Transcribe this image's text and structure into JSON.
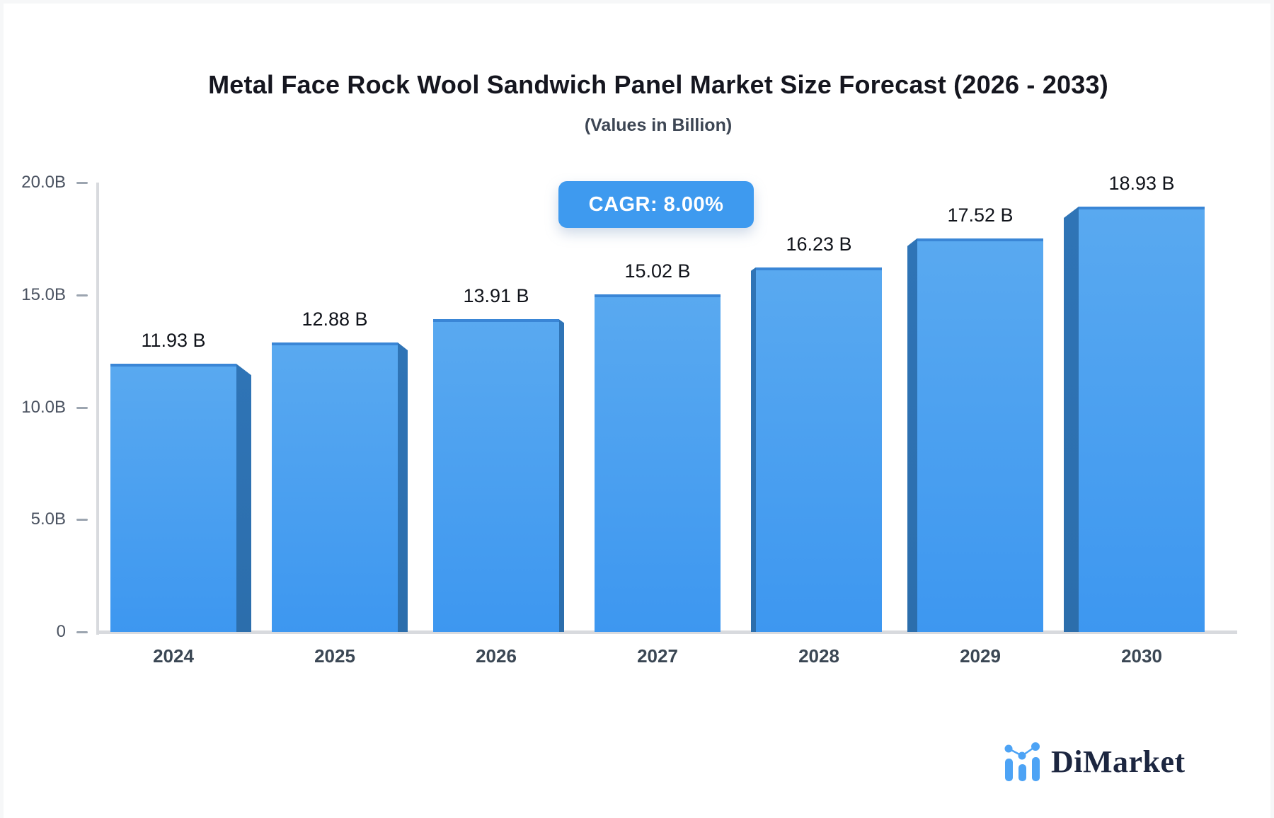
{
  "header": {
    "title": "Metal Face Rock Wool Sandwich Panel Market Size Forecast (2026 - 2033)",
    "subtitle": "(Values in Billion)"
  },
  "badge": {
    "label": "CAGR: 8.00%"
  },
  "chart_data": {
    "type": "bar",
    "categories": [
      "2024",
      "2025",
      "2026",
      "2027",
      "2028",
      "2029",
      "2030"
    ],
    "values": [
      11.93,
      12.88,
      13.91,
      15.02,
      16.23,
      17.52,
      18.93
    ],
    "bar_labels": [
      "11.93 B",
      "12.88 B",
      "13.91 B",
      "15.02 B",
      "16.23 B",
      "17.52 B",
      "18.93 B"
    ],
    "title": "Metal Face Rock Wool Sandwich Panel Market Size Forecast (2026 - 2033)",
    "subtitle": "(Values in Billion)",
    "xlabel": "",
    "ylabel": "",
    "ylim": [
      0,
      20
    ],
    "yticks": [
      {
        "value": 0,
        "label": "0"
      },
      {
        "value": 5,
        "label": "5.0B"
      },
      {
        "value": 10,
        "label": "10.0B"
      },
      {
        "value": 15,
        "label": "15.0B"
      },
      {
        "value": 20,
        "label": "20.0B"
      }
    ],
    "grid": false,
    "legend": false,
    "style": "3d-perspective-bars"
  },
  "logo": {
    "brand": "DiMarket"
  },
  "colors": {
    "bar_face_top": "#59A9F0",
    "bar_face_bottom": "#3D97F0",
    "bar_top_edge": "#3A86D6",
    "bar_side": "#2E72B3",
    "badge_bg": "#3E9AEF",
    "badge_text": "#FFFFFF",
    "axis_line": "#D8DADE",
    "tick_dash": "#9CA5B0",
    "ytick_text": "#4A5260",
    "xtick_text": "#3B4754",
    "value_text": "#10131A",
    "title_text": "#15161F",
    "subtitle_text": "#3D4654",
    "logo_text": "#1C2640",
    "logo_icon": "#4DA3F5"
  }
}
